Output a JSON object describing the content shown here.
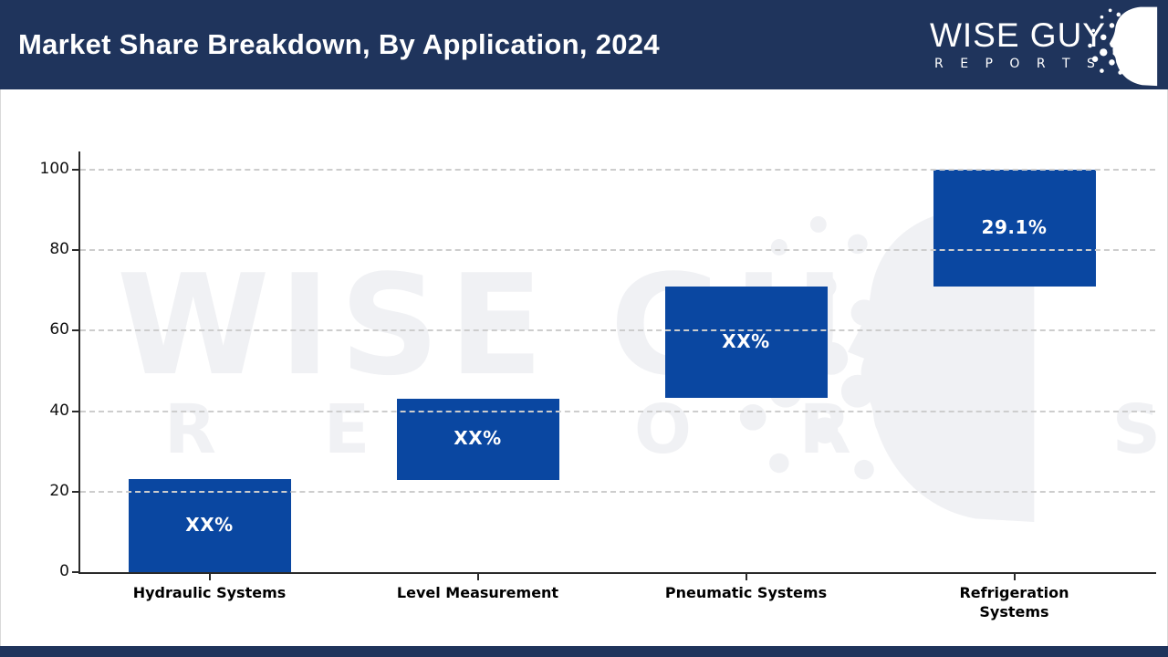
{
  "header": {
    "title": "Market Share Breakdown, By Application, 2024",
    "logo": {
      "name": "WISE GUY",
      "subtitle": "R E P O R T S"
    }
  },
  "watermark": {
    "name": "WISE GU",
    "subtitle": "R E P O R T S"
  },
  "chart_data": {
    "type": "bar",
    "variant": "floating_waterfall_segments",
    "title": "Market Share Breakdown, By Application, 2024",
    "categories": [
      "Hydraulic Systems",
      "Level Measurement",
      "Pneumatic Systems",
      "Refrigeration Systems"
    ],
    "category_lines": [
      [
        "Hydraulic Systems"
      ],
      [
        "Level Measurement"
      ],
      [
        "Pneumatic Systems"
      ],
      [
        "Refrigeration",
        "Systems"
      ]
    ],
    "segments": [
      {
        "category": "Hydraulic Systems",
        "start": 0,
        "end": 23.1,
        "label": "XX%"
      },
      {
        "category": "Level Measurement",
        "start": 23.0,
        "end": 43.1,
        "label": "XX%"
      },
      {
        "category": "Pneumatic Systems",
        "start": 43.3,
        "end": 71.0,
        "label": "XX%"
      },
      {
        "category": "Refrigeration Systems",
        "start": 70.9,
        "end": 100,
        "label": "29.1%"
      }
    ],
    "xlabel": "",
    "ylabel": "",
    "yticks": [
      0,
      20,
      40,
      60,
      80,
      100
    ],
    "ylim": [
      0,
      100
    ],
    "grid": "horizontal-dashed",
    "legend": "none",
    "bar_color": "#0a47a1",
    "bar_label_color": "#ffffff"
  },
  "colors": {
    "header_bg": "#1f345c",
    "footer_bg": "#1f345c",
    "bar": "#0a47a1",
    "gridline": "#cdcdcd",
    "axis": "#2a2a2a",
    "watermark": "#f0f1f4",
    "title_text": "#ffffff"
  }
}
